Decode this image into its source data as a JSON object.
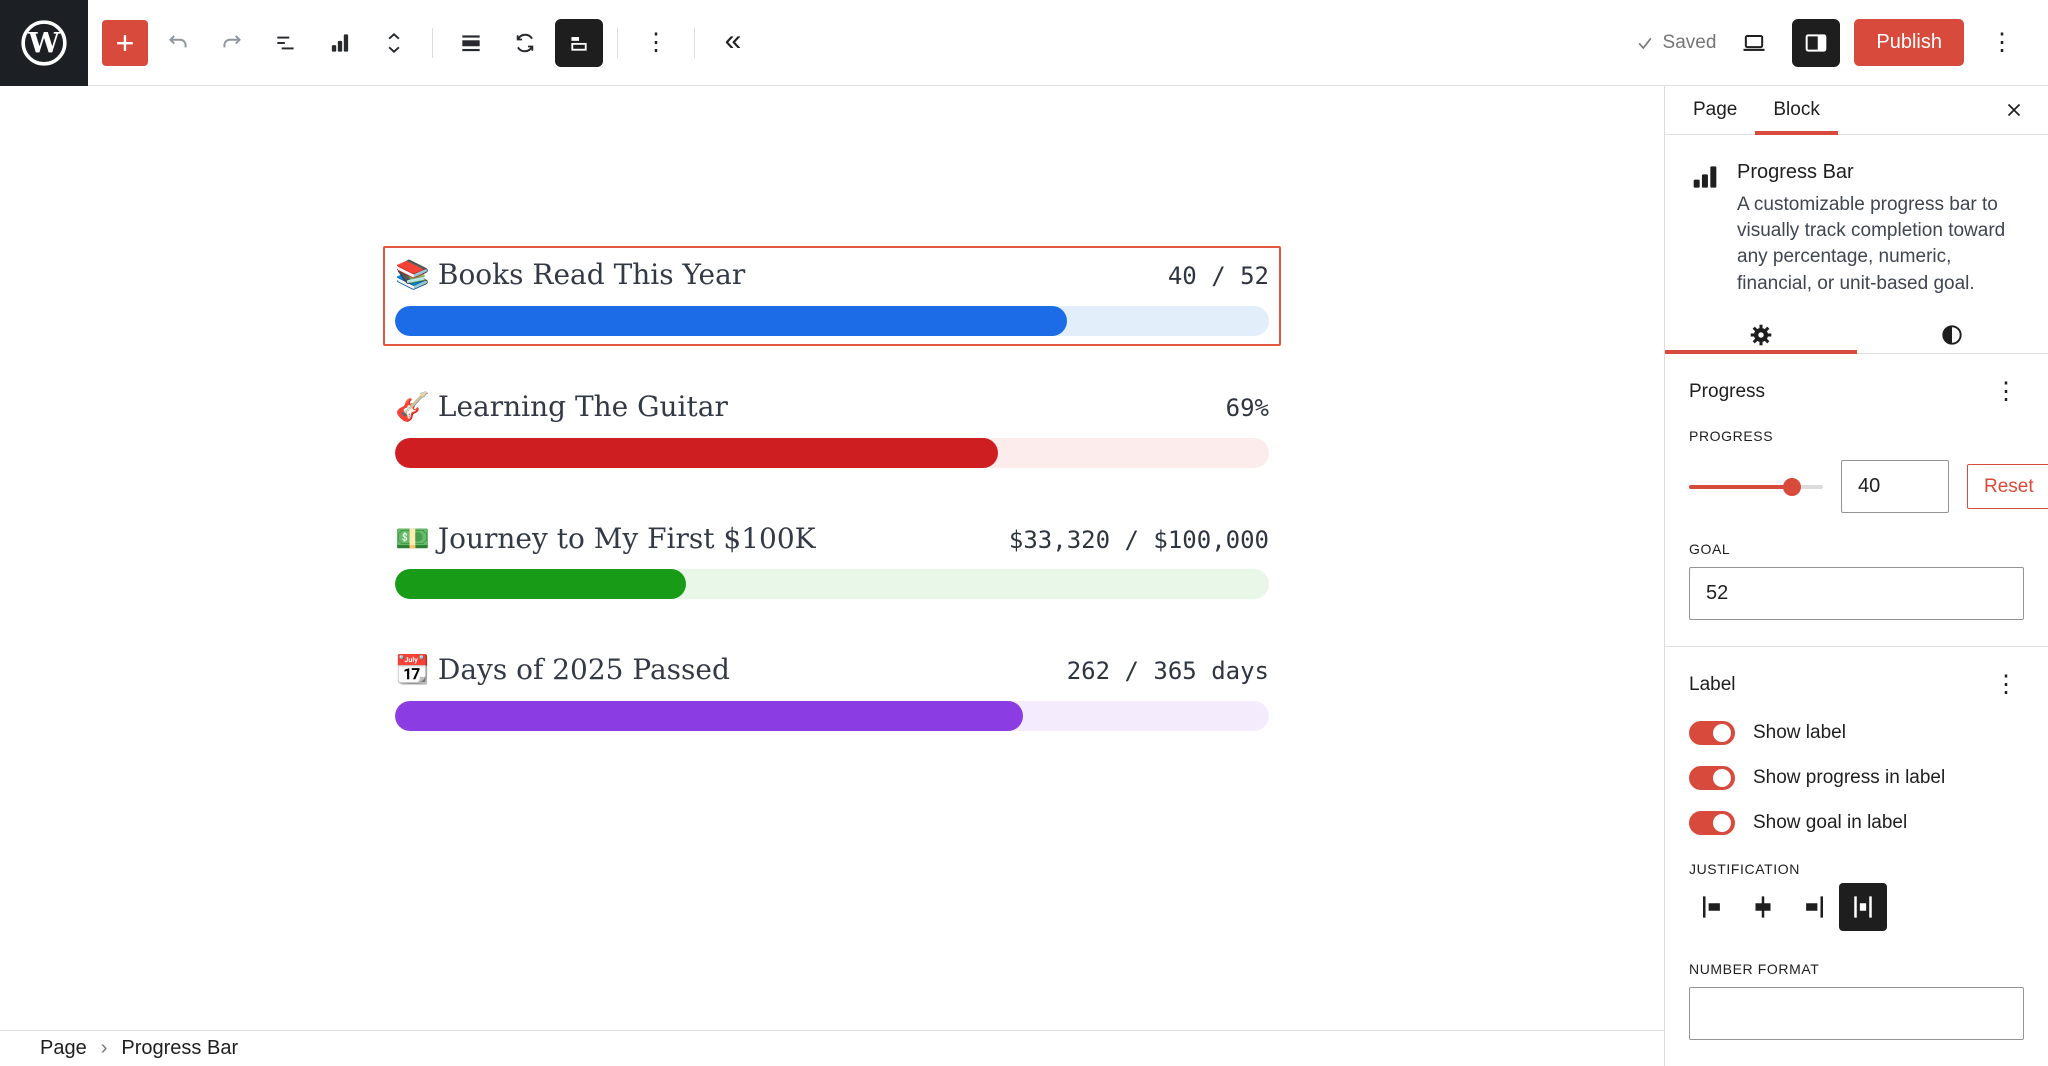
{
  "colors": {
    "accent": "#d84a3c",
    "selection_border": "#e0563e",
    "toolbar_dark": "#1e1e1e",
    "border": "#e0e0e0"
  },
  "header": {
    "saved_label": "Saved",
    "publish_label": "Publish"
  },
  "icons": {
    "wordpress-logo": "W in circle",
    "inserter": "+",
    "undo": "curved-left-arrow",
    "redo": "curved-right-arrow",
    "document-overview": "staggered-lines",
    "block-chart": "ascending-bars",
    "block-movers": "chevron-up-down",
    "align-stretch": "thin-thick-thin-lines",
    "transform": "circular-arrows",
    "label-position": "bar-over-rect",
    "options": "vertical-ellipsis",
    "collapse": "«",
    "check": "✓",
    "preview-desktop": "laptop",
    "sidebar-toggle": "panel-right-filled",
    "close": "×",
    "settings-gear": "gear",
    "styles": "half-filled-circle"
  },
  "canvas": {
    "blocks": [
      {
        "emoji": "📚",
        "label": "Books Read This Year",
        "value_display": "40 / 52",
        "percent": 76.9,
        "fill_color": "#1b6ce6",
        "track_color": "#e2eefa",
        "selected": true
      },
      {
        "emoji": "🎸",
        "label": "Learning The Guitar",
        "value_display": "69%",
        "percent": 69,
        "fill_color": "#cf1e22",
        "track_color": "#fdecec",
        "selected": false
      },
      {
        "emoji": "💵",
        "label": "Journey to My First $100K",
        "value_display": "$33,320 / $100,000",
        "percent": 33.3,
        "fill_color": "#189c18",
        "track_color": "#e8f7e8",
        "selected": false
      },
      {
        "emoji": "📆",
        "label": "Days of 2025 Passed",
        "value_display": "262 / 365 days",
        "percent": 71.8,
        "fill_color": "#8b3ce2",
        "track_color": "#f4ecfc",
        "selected": false
      }
    ]
  },
  "sidebar": {
    "tabs": {
      "page": "Page",
      "block": "Block"
    },
    "block_card": {
      "title": "Progress Bar",
      "description": "A customizable progress bar to visually track completion toward any percentage, numeric, financial, or unit-based goal."
    },
    "progress_panel": {
      "title": "Progress",
      "progress_label": "PROGRESS",
      "progress_value": "40",
      "slider_percent": 77,
      "reset_label": "Reset",
      "goal_label": "GOAL",
      "goal_value": "52"
    },
    "label_panel": {
      "title": "Label",
      "toggles": [
        {
          "label": "Show label",
          "on": true
        },
        {
          "label": "Show progress in label",
          "on": true
        },
        {
          "label": "Show goal in label",
          "on": true
        }
      ],
      "justification_label": "JUSTIFICATION",
      "justification_selected": "space-between",
      "number_format_label": "NUMBER FORMAT",
      "number_format_value": ""
    }
  },
  "footer": {
    "breadcrumb_page": "Page",
    "breadcrumb_block": "Progress Bar"
  }
}
